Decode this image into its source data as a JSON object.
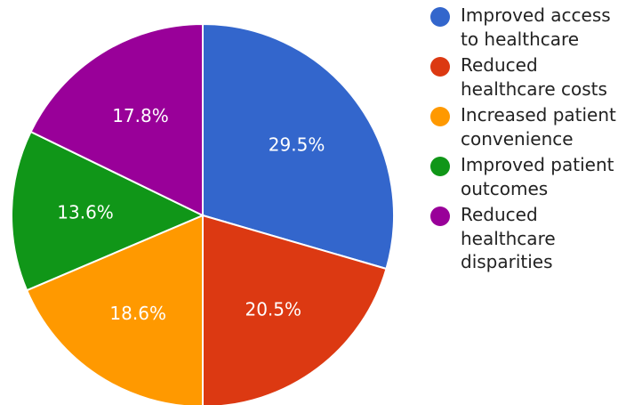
{
  "chart_data": {
    "type": "pie",
    "categories": [
      "Improved access to healthcare",
      "Reduced healthcare costs",
      "Increased patient convenience",
      "Improved patient outcomes",
      "Reduced healthcare disparities"
    ],
    "values": [
      29.5,
      20.5,
      18.6,
      13.6,
      17.8
    ],
    "value_labels": [
      "29.5%",
      "20.5%",
      "18.6%",
      "13.6%",
      "17.8%"
    ],
    "colors": [
      "#3366cc",
      "#dc3912",
      "#ff9900",
      "#109618",
      "#990099"
    ],
    "legend_position": "right",
    "start_angle": "top, clockwise"
  }
}
